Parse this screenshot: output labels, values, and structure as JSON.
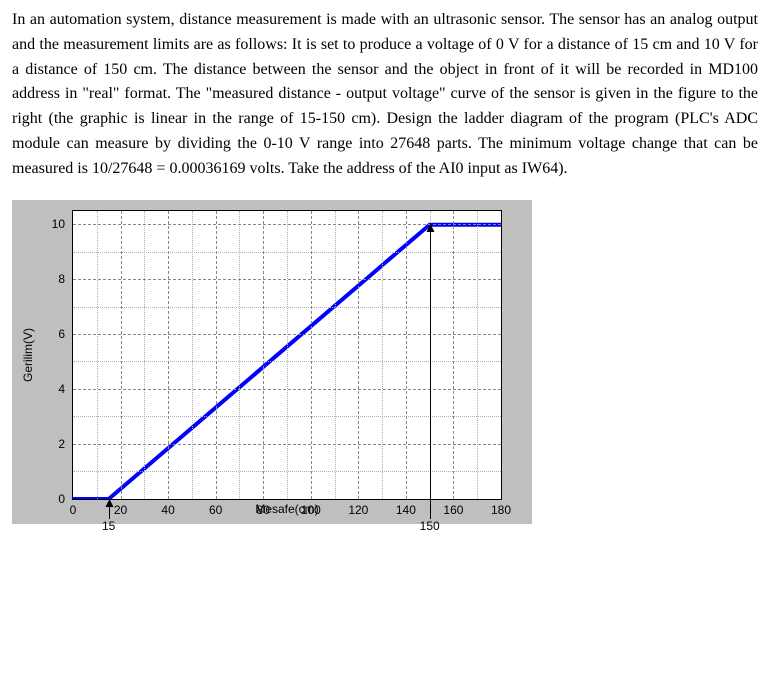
{
  "problem": {
    "text": "In an automation system, distance measurement is made with an ultrasonic sensor. The sensor has an analog output and the measurement limits are as follows: It is set to produce a voltage of 0 V for a distance of 15 cm and 10 V for a distance of 150 cm. The distance between the sensor and the object in front of it will be recorded in MD100 address in \"real\" format. The \"measured distance - output voltage\" curve of the sensor is given in the figure to the right (the graphic is linear in the range of 15-150 cm). Design the ladder diagram of the program (PLC's ADC module can measure by dividing the 0-10 V range into 27648 parts. The minimum voltage change that can be measured is 10/27648 = 0.00036169 volts. Take the address of the AI0 input as IW64)."
  },
  "chart": {
    "type": "line",
    "title": "",
    "x_label": "Mesafe(cm)",
    "y_label": "Gerilim(V)",
    "xlim": [
      0,
      180
    ],
    "ylim": [
      0,
      10.5
    ],
    "x_ticks": [
      0,
      20,
      40,
      60,
      80,
      100,
      120,
      140,
      160,
      180
    ],
    "y_ticks": [
      0,
      2,
      4,
      6,
      8,
      10
    ],
    "x_minor_step": 10,
    "y_minor_step": 1,
    "background_color": "#bfbfbf",
    "plot_bg": "#ffffff",
    "grid_major_color": "#888888",
    "grid_minor_color": "#b0b0b0",
    "curve_color": "#0000ff",
    "curve_width": 4,
    "label_font": "Arial",
    "label_fontsize": 12,
    "curve_points": [
      {
        "x": 0,
        "y": 0
      },
      {
        "x": 15,
        "y": 0
      },
      {
        "x": 150,
        "y": 10
      },
      {
        "x": 180,
        "y": 10
      }
    ],
    "markers": [
      {
        "x": 15,
        "label": "15",
        "y_from": -0.8,
        "y_to": 0
      },
      {
        "x": 150,
        "label": "150",
        "y_from": -0.8,
        "y_to": 10
      }
    ]
  }
}
